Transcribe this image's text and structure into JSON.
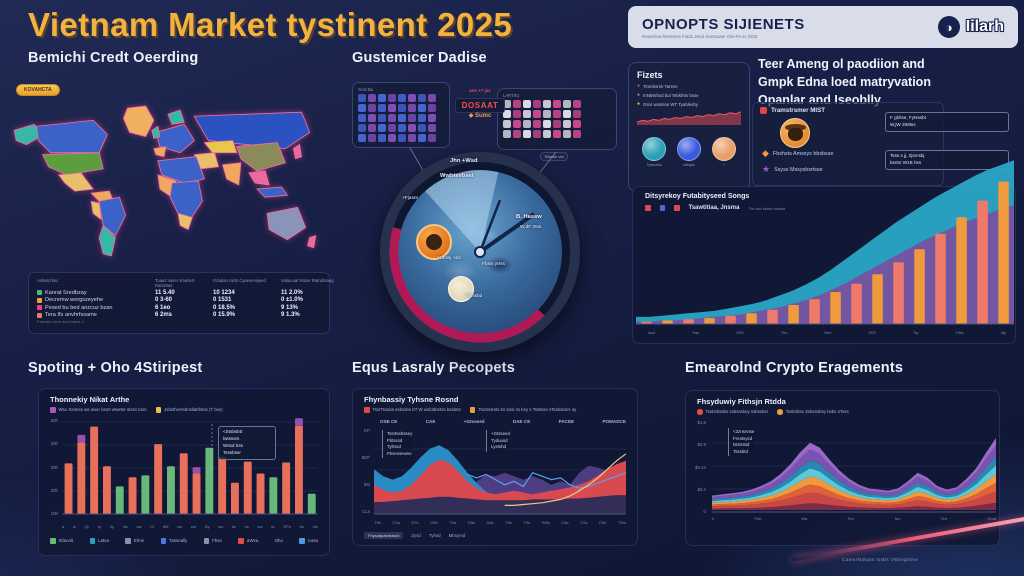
{
  "colors": {
    "background": "#161e42",
    "accent_yellow": "#f2b33d",
    "accent_pink": "#e8417e",
    "accent_orange": "#f09a3e",
    "accent_teal": "#2ba6c8",
    "accent_purple": "#7a4fa0",
    "accent_red": "#d84a50",
    "accent_green": "#68b87a",
    "icon_palette": [
      "#4a6ae0",
      "#e04848",
      "#2aa0b8",
      "#e8e8f0",
      "#f09a3e",
      "#8a52c0",
      "#30b878",
      "#20306a",
      "#d84a90",
      "#5ac8d8"
    ]
  },
  "header": {
    "title": "Vietnam Market tystinent 2025",
    "brand": {
      "title": "OPNOPTS SIJIENETS",
      "subtitle": "Reserbsa Msremss Fiads Jend Sanstuaer Gle-Fa sv DOE",
      "logo": "Iilarh"
    }
  },
  "map": {
    "title": "Bemichi Credt Oeerding",
    "badge": "KOVAHCTA",
    "table": {
      "label_header": "Asbssd bsc",
      "col_headers": [
        "Tuaaz naver smazert Ratozsas",
        "Fizadan razts Cyaesevejeed",
        "Valaa aaf Razer Ratrubsaag"
      ],
      "rows": [
        {
          "color": "#3dbd7d",
          "label": "Kanrat Sredbzay",
          "values": [
            "11  5.40",
            "10  1234",
            "11  2.0%"
          ]
        },
        {
          "color": "#f0a13c",
          "label": "Decremw worgszeyehe",
          "values": [
            "0  3-60",
            "0  1531",
            "0  ±1.0%"
          ]
        },
        {
          "color": "#e8417e",
          "label": "Pesed bu bed anzcuz bzan",
          "values": [
            "6  1eo",
            "0  18.5%",
            "9  13%"
          ]
        },
        {
          "color": "#e87d5a",
          "label": "Tera Ifs anvhrfssame",
          "values": [
            "6  2ms",
            "0  15.9%",
            "9  1.3%"
          ]
        }
      ],
      "footnote": "Fsamars stvre wzrd bakrs 2"
    }
  },
  "gauge": {
    "title": "Gustemicer Dadise",
    "cards": [
      {
        "caption": "GAS Bu",
        "cols": 8,
        "rows": 5
      },
      {
        "caption": "LARTSU",
        "cols": 8,
        "rows": 4
      }
    ],
    "center": {
      "note": "ans +7 jss",
      "label": "DOSAAT",
      "sub": "◆ Sumc"
    },
    "pill": "7Bssse om",
    "labels": [
      "Jhn +Wsd",
      "Wwbtevbsel",
      "+Fjasnt",
      "B. Hassw",
      "W,dF 2tss",
      "Hfbssj +bd",
      "Fbsst jMss",
      "Tssssbd"
    ]
  },
  "insight": {
    "card": {
      "title": "Fizets",
      "rows": [
        {
          "color": "#e8417e",
          "label": "Timebsrek Tarese"
        },
        {
          "color": "#8a93b8",
          "label": "mNbWbsd bul Tebkthts bsse"
        },
        {
          "color": "#f0c04a",
          "label": "Gssr wsstsse WT Tyablevby"
        }
      ],
      "spark": [
        3,
        5,
        4,
        6,
        5,
        7,
        6,
        8,
        7,
        9,
        8,
        10,
        9,
        11,
        10,
        12,
        11,
        13,
        12,
        14
      ],
      "avatars": [
        {
          "bg": "#2aa0b8",
          "label": "Tystswks"
        },
        {
          "bg": "#3a5ae0",
          "label": "wttsjss"
        },
        {
          "bg": "#e8a06a",
          "label": "I"
        }
      ]
    },
    "headline": [
      "Teer Ameng ol paodiion and",
      "Gmpk Edna loed matryvation",
      "Opanlar and Iseoblly"
    ],
    "features": {
      "header": "Tramstrsmer  MIST",
      "items": [
        {
          "icon": "bull",
          "label": ""
        },
        {
          "icon": "drop",
          "color": "#f09a3e",
          "label": "Fbshsts Amssys bbsbsse"
        },
        {
          "icon": "star",
          "color": "#9a5ac8",
          "label": "Ssyss Mssysbsrtsse"
        }
      ]
    },
    "boxes": [
      [
        "F ghltse, Fytsssbt",
        "W,jW 2tMtss"
      ],
      [
        "Tsss s jj, Zjsmsbj",
        "bsrtsr W1B hss"
      ]
    ]
  },
  "chart_data": [
    {
      "id": "growth",
      "type": "area",
      "title": "Ditsyrekoy Futabityseed Songs",
      "legend": {
        "swatches": [
          "#e04848",
          "#4a6ae0",
          "#e04848"
        ],
        "label": "Tsawtitiaa, Jnsma",
        "sub": "Tm bsd ssbsr bssbsr"
      },
      "x_ticks": [
        "Asd",
        "7ws",
        "1SS",
        "7tm",
        "Eim",
        "5SS",
        "7ty",
        "1Wk",
        "4ty"
      ],
      "ylim": [
        0,
        150
      ],
      "series": [
        {
          "name": "cumulative-adoption",
          "type": "area",
          "color": "#2ba6c8",
          "values": [
            6,
            6,
            7,
            8,
            9,
            10,
            11,
            13,
            15,
            17,
            20,
            24,
            28,
            33,
            39,
            46,
            54,
            62,
            70,
            78,
            86,
            93,
            100,
            107,
            113,
            119,
            125,
            130,
            134,
            138
          ]
        },
        {
          "name": "active-users",
          "type": "area",
          "color": "#7a4fa0",
          "values": [
            2,
            2,
            3,
            3,
            4,
            5,
            6,
            7,
            8,
            10,
            12,
            14,
            17,
            20,
            24,
            29,
            34,
            40,
            46,
            52,
            58,
            64,
            70,
            75,
            80,
            85,
            89,
            93,
            97,
            100
          ]
        },
        {
          "name": "quarterly-volume",
          "type": "bar",
          "colors": [
            "#f07a6a",
            "#f09a3e"
          ],
          "values": [
            2,
            3,
            4,
            5,
            7,
            9,
            12,
            16,
            21,
            27,
            34,
            42,
            52,
            63,
            76,
            90,
            104,
            120
          ]
        }
      ]
    },
    {
      "id": "activity-bars",
      "type": "bar",
      "section_title": "Spoting + Oho 4Stiripest",
      "title": "Thonnekiy Nikat Arthe",
      "legend": [
        {
          "color": "#b052c0",
          "label": "Wsu Ssmtss ws wser bssrt wtwrtsr stsss bsm"
        },
        {
          "color": "#e8c04a",
          "label": "Jshsthvrssbnsllatfrslss (T bss)"
        }
      ],
      "y_ticks": [
        "50h",
        "40h",
        "30h",
        "20h",
        "10h"
      ],
      "x_ticks": [
        "a",
        "w",
        "Qr",
        "tp",
        "4y",
        "4w",
        "ws",
        "Ct",
        "dM",
        "ws",
        "wd",
        "Dy",
        "ws",
        "fw",
        "ns",
        "wd",
        "tb",
        "EPs",
        "ds",
        "ofs"
      ],
      "values": [
        55,
        78,
        95,
        52,
        30,
        40,
        42,
        76,
        52,
        66,
        44,
        72,
        62,
        34,
        57,
        44,
        40,
        56,
        96,
        22
      ],
      "bar_colors": [
        "o",
        "o",
        "o",
        "o",
        "g",
        "o",
        "g",
        "o",
        "g",
        "o",
        "o",
        "g",
        "o",
        "o",
        "o",
        "o",
        "g",
        "o",
        "o",
        "g"
      ],
      "color_map": {
        "o": "#e8705a",
        "g": "#68b87a"
      },
      "caps": [
        0,
        8,
        0,
        0,
        0,
        0,
        0,
        0,
        0,
        0,
        7,
        0,
        0,
        0,
        0,
        0,
        0,
        0,
        8,
        0
      ],
      "cap_color": "#9a4fb0",
      "ylim": [
        0,
        100
      ],
      "annotation": [
        "<Stsbsbtt",
        "lwtsssrs",
        "Wssd bss",
        "Tsssbssr"
      ],
      "footer_legend": [
        {
          "color": "#68b87a",
          "label": "Stlanolt"
        },
        {
          "color": "#2aa0b8",
          "label": "Latsa"
        },
        {
          "color": "#8a90a8",
          "label": "Ehne"
        },
        {
          "color": "#4a7ae8",
          "label": "Tassnally"
        },
        {
          "color": "#8a90a8",
          "label": "Fbsn"
        },
        {
          "color": "#e05040",
          "label": "aWsa"
        },
        {
          "color": null,
          "label": "Oho"
        },
        {
          "color": "#4a9ae8",
          "label": "rueta"
        }
      ]
    },
    {
      "id": "monthly-flows",
      "type": "area",
      "section_title": "Equs Lasraly Pecopets",
      "title": "Fhynbassiy Tyhsne Rosnd",
      "legend": [
        {
          "color": "#e04848",
          "label": "TssrTsssbs ssbssbs bT W wsbsbsrtss bssbtsr"
        },
        {
          "color": "#f09a3e",
          "label": "TssSssmts bs bssl ss bsy s TsWsss sTssbsbsrs sy"
        }
      ],
      "top_labels": [
        "OSE CE",
        "CAE",
        "+Gtsseed",
        "DAE CE",
        "PACEE",
        "POMADCE"
      ],
      "y_ticks": [
        "EP",
        "5EP",
        "5M",
        "CLs"
      ],
      "x_ticks": [
        "T9e",
        "C9a",
        "D7s",
        "O9b",
        "T9a",
        "D9s",
        "A9s",
        "T9s",
        "T9e",
        "W9s",
        "C4e",
        "C9s",
        "C9e",
        "T9m"
      ],
      "ylim": [
        0,
        100
      ],
      "areas": [
        {
          "name": "purple-range",
          "color": "rgba(90,68,144,.85)",
          "values": [
            0,
            0,
            0,
            0,
            0,
            0,
            0,
            0,
            0,
            0,
            24,
            38,
            46,
            44,
            48,
            44,
            40,
            44,
            40,
            34,
            38,
            34,
            48,
            56,
            54,
            50,
            44,
            40
          ]
        },
        {
          "name": "blue-wave",
          "color": "#2a8ac4",
          "values": [
            52,
            44,
            40,
            44,
            54,
            66,
            76,
            80,
            74,
            62,
            48,
            36,
            26,
            20,
            16,
            13,
            11,
            10,
            9,
            9,
            9,
            9,
            9,
            9,
            9,
            9,
            9,
            9
          ]
        },
        {
          "name": "red-wave",
          "color": "#d84a50",
          "values": [
            34,
            28,
            25,
            27,
            34,
            45,
            57,
            63,
            60,
            50,
            38,
            30,
            25,
            23,
            25,
            27,
            25,
            23,
            25,
            27,
            29,
            31,
            34,
            38,
            45,
            52,
            58,
            62
          ]
        },
        {
          "name": "base-band",
          "color": "#332e58",
          "values": [
            14,
            14,
            15,
            16,
            17,
            18,
            19,
            20,
            20,
            19,
            18,
            17,
            16,
            16,
            16,
            16,
            16,
            17,
            17,
            17,
            17,
            18,
            18,
            19,
            20,
            21,
            22,
            22
          ]
        }
      ],
      "lines": [
        {
          "name": "blue-line",
          "color": "#5aa0f0",
          "values": [
            null,
            null,
            null,
            null,
            null,
            null,
            null,
            null,
            null,
            null,
            46,
            42,
            46,
            40,
            34,
            38,
            32,
            48,
            44,
            40,
            42,
            34,
            30,
            32,
            36,
            40,
            44,
            48
          ]
        },
        {
          "name": "orange-line",
          "color": "#f0c488",
          "values": [
            null,
            null,
            null,
            null,
            null,
            null,
            null,
            null,
            null,
            null,
            null,
            null,
            null,
            null,
            10,
            10,
            11,
            12,
            13,
            15,
            17,
            21,
            27,
            34,
            42,
            52,
            62,
            70
          ]
        }
      ],
      "annotations": [
        {
          "lines": [
            "Tssrtsebssey",
            "Fbtsssd",
            "Tylrssd",
            "Fbsessewne"
          ]
        },
        {
          "lines": [
            "+Gtsseed",
            "Tyduusd",
            "Lystshd"
          ]
        }
      ],
      "footer": {
        "pill": "Fhysadpaintsbanl",
        "items": [
          "Zysd",
          "Tyhsd",
          "Mbsymd"
        ]
      }
    },
    {
      "id": "crypto-engagement",
      "type": "area",
      "section_title": "Emearolnd Crypto Eragements",
      "title": "Fhsyduwiy Fithsjn Rtdda",
      "legend": [
        {
          "color": "#e05040",
          "label": "Tssbsbssbs ssbsssbsy ssbssbsr"
        },
        {
          "color": "#f09a3e",
          "label": "Tssbsbss Ssbsssbsy bsbs sTsss"
        }
      ],
      "y_ticks": [
        "$1.8",
        "$0.9",
        "$0.44",
        "$0.4",
        "0"
      ],
      "x_ticks": [
        "0",
        "Feb",
        "Ma",
        "Ten",
        "Teo",
        "Ten",
        "Oma"
      ],
      "ylim": [
        0,
        70
      ],
      "base": [
        12,
        13,
        14,
        15,
        17,
        20,
        24,
        30,
        38,
        48,
        56,
        52,
        42,
        33,
        26,
        21,
        18,
        17,
        16,
        18,
        24,
        31,
        27,
        20,
        17,
        19,
        26,
        35,
        48,
        60
      ],
      "bands": [
        {
          "name": "band-darkred",
          "color": "#7a2c48",
          "f": 0.1
        },
        {
          "name": "band-red",
          "color": "#c84848",
          "f": 0.16
        },
        {
          "name": "band-orangered",
          "color": "#e06038",
          "f": 0.12
        },
        {
          "name": "band-orange",
          "color": "#f09a3e",
          "f": 0.12
        },
        {
          "name": "band-cyan",
          "color": "#5ac8d8",
          "f": 0.12
        },
        {
          "name": "band-teal",
          "color": "#2a88b0",
          "f": 0.12
        },
        {
          "name": "band-purple",
          "color": "#7a52b0",
          "f": 0.16
        },
        {
          "name": "band-violet",
          "color": "#9a6ac8",
          "f": 0.1
        }
      ],
      "annotation": [
        "<3znsrvtse",
        "Frestsysd",
        "tstsmtsd",
        "Tsssbtd"
      ]
    }
  ],
  "footer": {
    "note": "Camsrlssbam tssbs V93Agtsme"
  }
}
